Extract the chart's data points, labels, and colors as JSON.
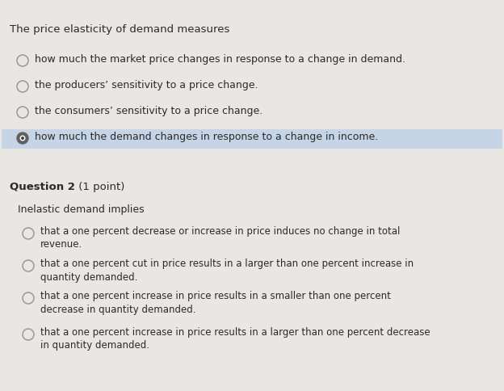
{
  "bg_color": "#e9e7e4",
  "highlight_color": "#c5d5e5",
  "text_color": "#2a2a2a",
  "q1_heading": "The price elasticity of demand measures",
  "q1_options": [
    "how much the market price changes in response to a change in demand.",
    "the producers’ sensitivity to a price change.",
    "the consumers’ sensitivity to a price change.",
    "how much the demand changes in response to a change in income."
  ],
  "q1_selected": 3,
  "q2_bold": "Question 2",
  "q2_normal": " (1 point)",
  "q2_subheading": "Inelastic demand implies",
  "q2_options": [
    "that a one percent decrease or increase in price induces no change in total\nrevenue.",
    "that a one percent cut in price results in a larger than one percent increase in\nquantity demanded.",
    "that a one percent increase in price results in a smaller than one percent\ndecrease in quantity demanded.",
    "that a one percent increase in price results in a larger than one percent decrease\nin quantity demanded."
  ],
  "q2_selected": -1,
  "figw": 6.24,
  "figh": 4.84,
  "dpi": 100
}
